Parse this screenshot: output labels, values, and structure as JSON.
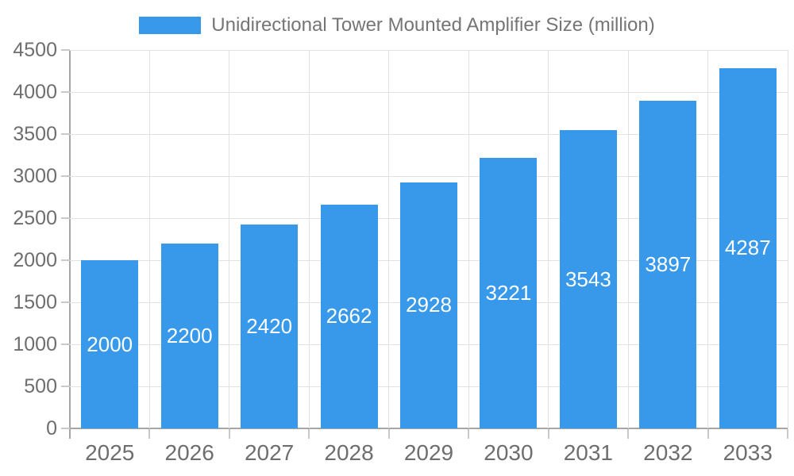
{
  "legend": {
    "label": "Unidirectional Tower Mounted Amplifier Size (million)",
    "swatch_color": "#3899EB"
  },
  "chart_data": {
    "type": "bar",
    "title": "Unidirectional Tower Mounted Amplifier Size (million)",
    "categories": [
      "2025",
      "2026",
      "2027",
      "2028",
      "2029",
      "2030",
      "2031",
      "2032",
      "2033"
    ],
    "values": [
      2000,
      2200,
      2420,
      2662,
      2928,
      3221,
      3543,
      3897,
      4287
    ],
    "xlabel": "",
    "ylabel": "",
    "ylim": [
      0,
      4500
    ],
    "yticks": [
      0,
      500,
      1000,
      1500,
      2000,
      2500,
      3000,
      3500,
      4000,
      4500
    ],
    "grid": true,
    "legend_position": "top",
    "bar_color": "#3899EB",
    "bar_label_color": "#FFFFFF"
  },
  "colors": {
    "background": "#FFFFFF",
    "grid_line": "#E2E2E2",
    "axis_line": "#A6A6A6",
    "tick_mark": "#C9C9C9",
    "tick_text": "#6E6E6E",
    "legend_text": "#757575"
  }
}
